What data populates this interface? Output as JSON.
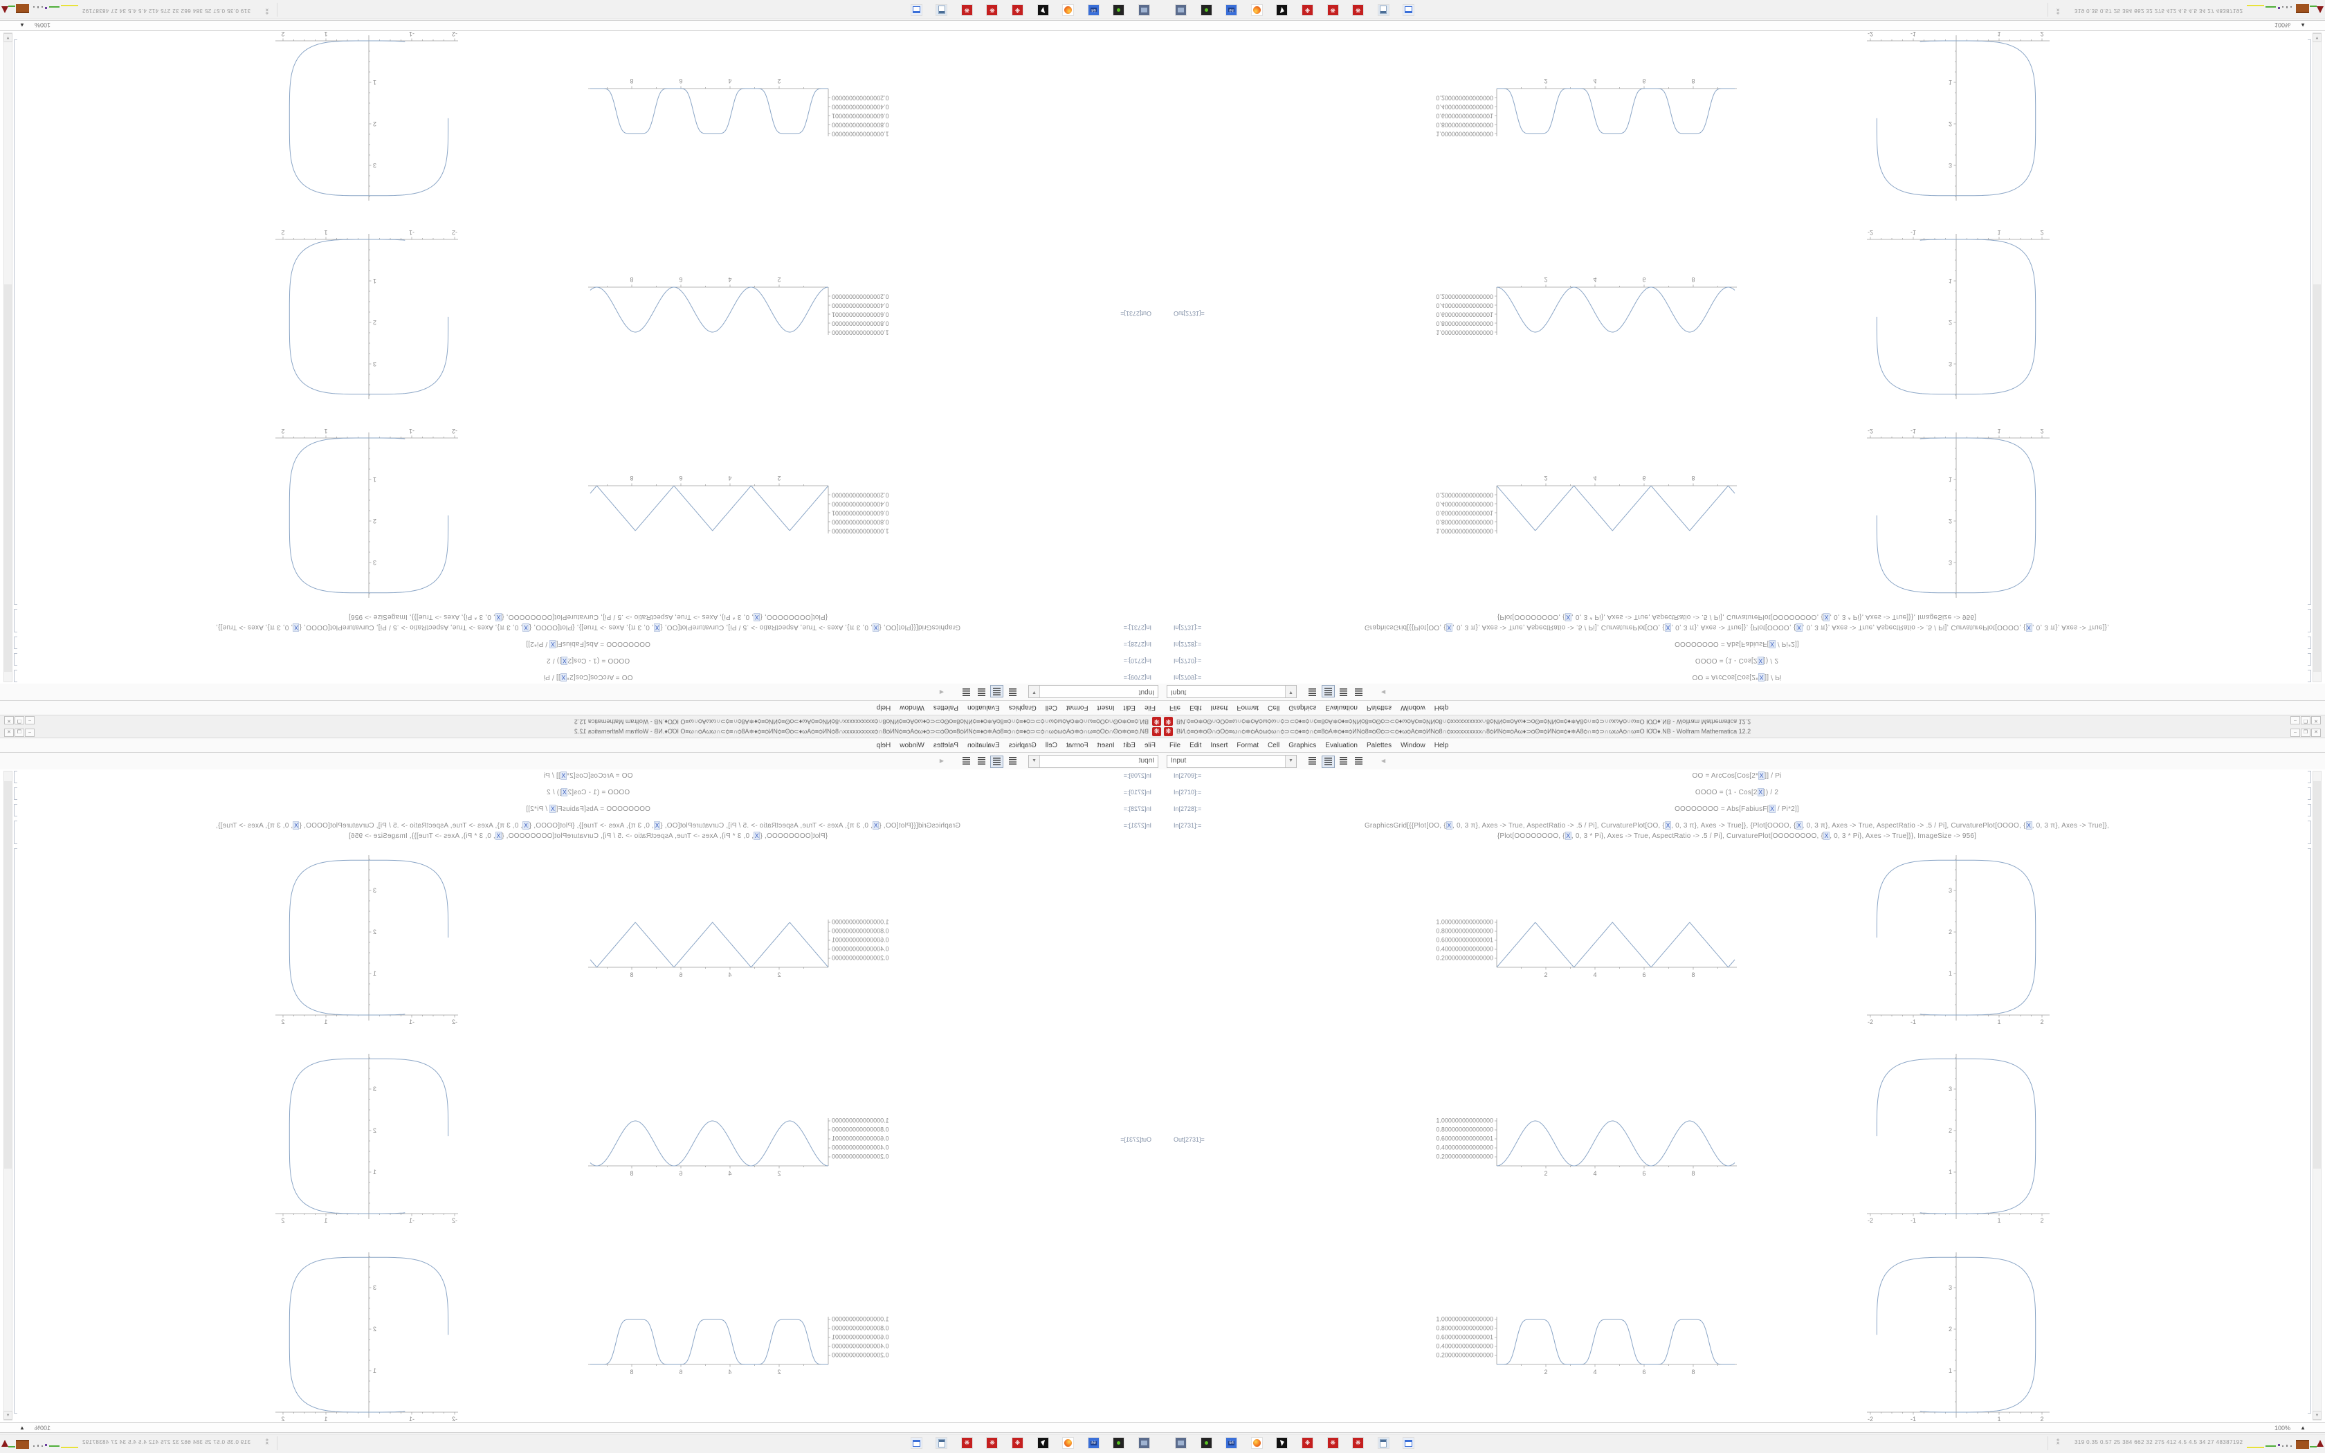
{
  "window": {
    "title": "ВИ.ѻ≡ѻ≑ѻΘ∩ѻΟѻ≡ω∩ѻ≑ѻΑѻωѻω∩ѻ⊃⊂ѻ♦≡ѻ∩ѻ≡8ѻΑ≑ѻ♦≡ѻИΝѻ8≡ѻΘѻ⊃⊂ѻ♦ωѻΑѻ≡ѻИΝѻ8∩ѻxxxxxxxxxx∩8ѻИΝѻ≡ѻΑω♦⊃ѻΘ≡ѻИΝѻ≡ѻ♦≑Α8ѻ∩≡ѻ⊃∩ωωΑѻ∩ω≡Ο ЮΌ♦.NB - Wolfram Mathematica 12.2",
    "controls": {
      "minimize": "–",
      "restore": "❐",
      "close": "✕"
    },
    "menu": [
      "File",
      "Edit",
      "Insert",
      "Format",
      "Cell",
      "Graphics",
      "Evaluation",
      "Palettes",
      "Window",
      "Help"
    ],
    "toolbar": {
      "style_dropdown": "Input",
      "dropdown_arrow": "▼",
      "collapse_arrow": "◀"
    },
    "status": {
      "zoom_level": "100%",
      "zoom_caret": "▲"
    }
  },
  "cells": [
    {
      "label": "In[2709]:=",
      "code": "OO = ArcCos[Cos[2*X]] / Pi"
    },
    {
      "label": "In[2710]:=",
      "code": "OOOO = (1 - Cos[2X]) / 2"
    },
    {
      "label": "In[2728]:=",
      "code": "OOOOOOOO = Abs[FabiusF[X / Pi*2]]"
    },
    {
      "label": "In[2731]:=",
      "code": "GraphicsGrid[{{Plot[OO, {X, 0, 3 π}, Axes -> True, AspectRatio -> .5 / Pi], CurvaturePlot[OO, {X, 0, 3 π}, Axes -> True]}, {Plot[OOOO, {X, 0, 3 π}, Axes -> True, AspectRatio -> .5 / Pi], CurvaturePlot[OOOO, {X, 0, 3 π}, Axes -> True]},",
      "code2": "{Plot[OOOOOOOO, {X, 0, 3 * Pi}, Axes -> True, AspectRatio -> .5 / Pi], CurvaturePlot[OOOOOOOO, {X, 0, 3 * Pi}, Axes -> True]}}, ImageSize -> 956]"
    },
    {
      "label": "Out[2731]="
    }
  ],
  "chart_data": [
    {
      "type": "line",
      "name": "Plot OO triangle wave",
      "shape": "triangle",
      "x_range": [
        0,
        9.7
      ],
      "y_range": [
        0,
        1
      ],
      "x_ticks": [
        2,
        4,
        6,
        8
      ],
      "y_tick_labels": [
        "1.000000000000000",
        "0.800000000000000",
        "0.600000000000001",
        "0.400000000000000",
        "0.200000000000000"
      ],
      "peaks_at": [
        1.5708,
        4.7124,
        7.854
      ],
      "zeros_at": [
        0,
        3.1416,
        6.2832,
        9.4248
      ]
    },
    {
      "type": "line",
      "name": "CurvaturePlot OO",
      "shape": "superellipse-C",
      "x_range": [
        -2.05,
        2.05
      ],
      "y_range": [
        0,
        3.93
      ],
      "x_ticks": [
        -2,
        -1,
        1,
        2
      ],
      "y_ticks": [
        1,
        2,
        3
      ]
    },
    {
      "type": "line",
      "name": "Plot OOOO sine-squared wave",
      "shape": "sin2",
      "x_range": [
        0,
        9.7
      ],
      "y_range": [
        0,
        1
      ],
      "x_ticks": [
        2,
        4,
        6,
        8
      ],
      "y_tick_labels": [
        "1.000000000000000",
        "0.800000000000000",
        "0.600000000000001",
        "0.400000000000000",
        "0.200000000000000"
      ],
      "peaks_at": [
        1.5708,
        4.7124,
        7.854
      ],
      "zeros_at": [
        0,
        3.1416,
        6.2832,
        9.4248
      ]
    },
    {
      "type": "line",
      "name": "CurvaturePlot OOOO",
      "shape": "superellipse-C",
      "x_range": [
        -2.05,
        2.05
      ],
      "y_range": [
        0,
        3.93
      ],
      "x_ticks": [
        -2,
        -1,
        1,
        2
      ],
      "y_ticks": [
        1,
        2,
        3
      ]
    },
    {
      "type": "line",
      "name": "Plot OOOOOOOO Fabius flat-top wave",
      "shape": "fabius",
      "x_range": [
        0,
        9.7
      ],
      "y_range": [
        0,
        1
      ],
      "x_ticks": [
        2,
        4,
        6,
        8
      ],
      "y_tick_labels": [
        "1.000000000000000",
        "0.800000000000000",
        "0.600000000000001",
        "0.400000000000000",
        "0.200000000000000"
      ],
      "plateaus_at": [
        1.5708,
        4.7124,
        7.854
      ]
    },
    {
      "type": "line",
      "name": "CurvaturePlot OOOOOOOO",
      "shape": "superellipse-C",
      "x_range": [
        -2.05,
        2.05
      ],
      "y_range": [
        0,
        3.93
      ],
      "x_ticks": [
        -2,
        -1,
        1,
        2
      ],
      "y_ticks": [
        1,
        2,
        3
      ]
    }
  ],
  "taskbar": {
    "icons": [
      "monitor",
      "vm",
      "floppy64",
      "firefox",
      "cat",
      "spikey",
      "spikey",
      "spikey",
      "calculator",
      "window"
    ],
    "floppy_label": "64",
    "tray_text": "319 0.35 0.57 25 384 662 32 275 412 4.5 4.5 34 27 48387192",
    "tray_chevron": "««"
  },
  "colors": {
    "accent_red": "#c41f1f",
    "plot_stroke": "#8aa5c6",
    "axis": "#9b9b9b",
    "tray_brown": "#a0521d",
    "tray_red": "#8b1a1a",
    "tray_yellow": "#e8e23a",
    "tray_green": "#4fae3a"
  }
}
